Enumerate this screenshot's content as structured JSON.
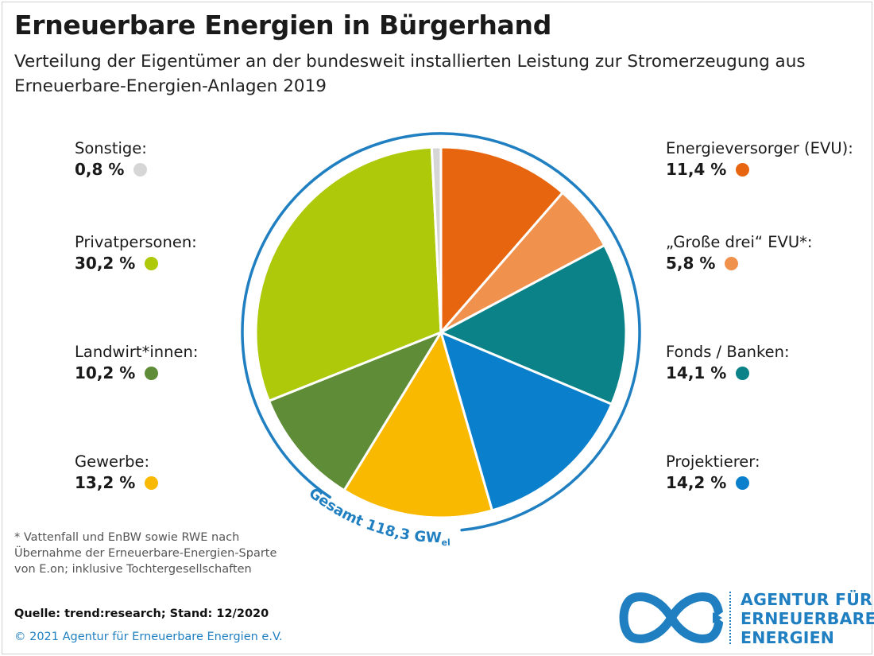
{
  "header": {
    "title": "Erneuerbare Energien in Bürgerhand",
    "subtitle": "Verteilung der Eigentümer an der bundesweit installierten Leistung zur Stromerzeugung aus Erneuerbare-Energien-Anlagen 2019"
  },
  "chart_data": {
    "type": "pie",
    "title": "Erneuerbare Energien in Bürgerhand",
    "subtitle": "Verteilung der Eigentümer an der bundesweit installierten Leistung zur Stromerzeugung aus Erneuerbare-Energien-Anlagen 2019",
    "total_label": "Gesamt 118,3 GW",
    "total_unit_subscript": "el",
    "slices": [
      {
        "name": "Energieversorger (EVU):",
        "value": 11.4,
        "label": "11,4 %",
        "color": "#e8650f"
      },
      {
        "name": "„Große drei“ EVU*:",
        "value": 5.8,
        "label": "5,8 %",
        "color": "#f0914d"
      },
      {
        "name": "Fonds / Banken:",
        "value": 14.1,
        "label": "14,1 %",
        "color": "#0a8287"
      },
      {
        "name": "Projektierer:",
        "value": 14.2,
        "label": "14,2 %",
        "color": "#0a7fcb"
      },
      {
        "name": "Gewerbe:",
        "value": 13.2,
        "label": "13,2 %",
        "color": "#f9b900"
      },
      {
        "name": "Landwirt*innen:",
        "value": 10.2,
        "label": "10,2 %",
        "color": "#5f8c37"
      },
      {
        "name": "Privatpersonen:",
        "value": 30.2,
        "label": "30,2 %",
        "color": "#adc90a"
      },
      {
        "name": "Sonstige:",
        "value": 0.8,
        "label": "0,8 %",
        "color": "#d6d6d6"
      }
    ]
  },
  "footnote": {
    "lines": [
      "* Vattenfall und EnBW sowie RWE nach",
      "Übernahme der Erneuerbare-Energien-Sparte",
      "von E.on; inklusive Tochtergesellschaften"
    ]
  },
  "source": "Quelle: trend:research; Stand: 12/2020",
  "copyright": "© 2021 Agentur für Erneuerbare Energien e.V.",
  "logo": {
    "lines": [
      "AGENTUR FÜR",
      "ERNEUERBARE",
      "ENERGIEN"
    ],
    "icon": "infinity-icon",
    "color": "#1f7fc1"
  },
  "ring_color": "#1f7fc1"
}
